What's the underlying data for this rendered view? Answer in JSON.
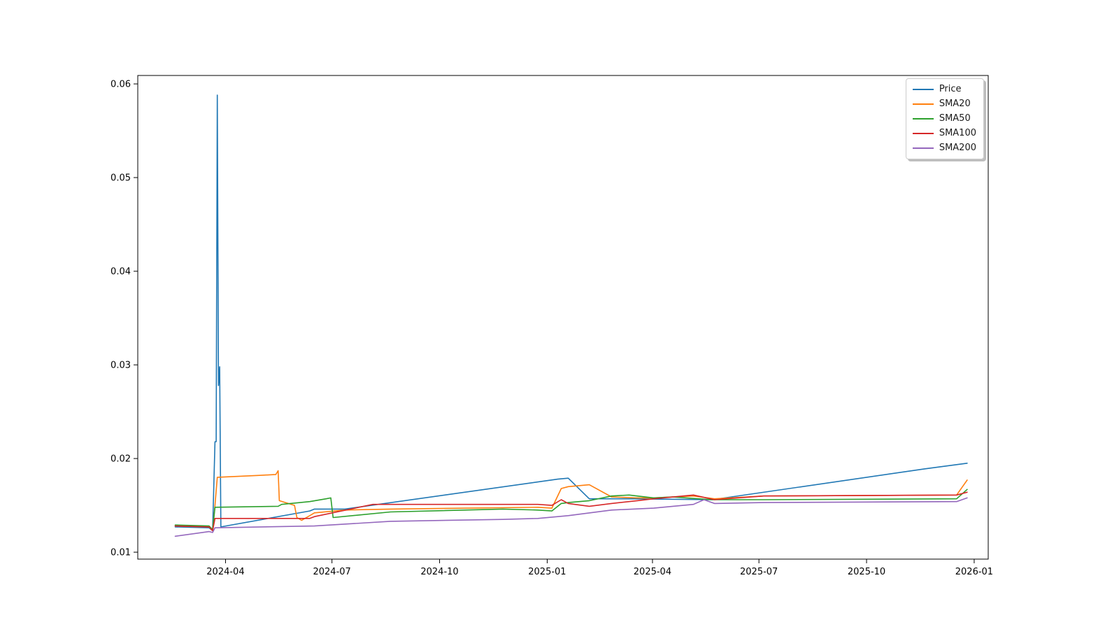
{
  "figure": {
    "background": "#ffffff"
  },
  "chart_data": {
    "type": "line",
    "title": "",
    "xlabel": "",
    "ylabel": "",
    "x_type": "date",
    "grid": false,
    "xlim": [
      "2024-01-17",
      "2026-01-13"
    ],
    "ylim": [
      0.00926,
      0.0609
    ],
    "x_ticks": [
      {
        "date": "2024-04-01",
        "label": "2024-04"
      },
      {
        "date": "2024-07-01",
        "label": "2024-07"
      },
      {
        "date": "2024-10-01",
        "label": "2024-10"
      },
      {
        "date": "2025-01-01",
        "label": "2025-01"
      },
      {
        "date": "2025-04-01",
        "label": "2025-04"
      },
      {
        "date": "2025-07-01",
        "label": "2025-07"
      },
      {
        "date": "2025-10-01",
        "label": "2025-10"
      },
      {
        "date": "2026-01-01",
        "label": "2026-01"
      }
    ],
    "y_ticks": [
      {
        "value": 0.01,
        "label": "0.01"
      },
      {
        "value": 0.02,
        "label": "0.02"
      },
      {
        "value": 0.03,
        "label": "0.03"
      },
      {
        "value": 0.04,
        "label": "0.04"
      },
      {
        "value": 0.05,
        "label": "0.05"
      },
      {
        "value": 0.06,
        "label": "0.06"
      }
    ],
    "legend": {
      "position": "upper-right"
    },
    "series": [
      {
        "name": "Price",
        "color": "#1f77b4",
        "points": [
          [
            "2024-02-18",
            0.0127
          ],
          [
            "2024-03-18",
            0.0126
          ],
          [
            "2024-03-21",
            0.0123
          ],
          [
            "2024-03-23",
            0.0218
          ],
          [
            "2024-03-24",
            0.0218
          ],
          [
            "2024-03-25",
            0.0588
          ],
          [
            "2024-03-26",
            0.0278
          ],
          [
            "2024-03-27",
            0.0298
          ],
          [
            "2024-03-28",
            0.0127
          ],
          [
            "2024-06-12",
            0.0144
          ],
          [
            "2024-06-16",
            0.0146
          ],
          [
            "2024-07-12",
            0.0146
          ],
          [
            "2025-01-10",
            0.0178
          ],
          [
            "2025-01-19",
            0.0179
          ],
          [
            "2025-02-06",
            0.0157
          ],
          [
            "2025-03-10",
            0.0157
          ],
          [
            "2025-05-22",
            0.0156
          ],
          [
            "2025-11-20",
            0.0189
          ],
          [
            "2025-12-26",
            0.0195
          ]
        ]
      },
      {
        "name": "SMA20",
        "color": "#ff7f0e",
        "points": [
          [
            "2024-02-18",
            0.0128
          ],
          [
            "2024-03-18",
            0.0127
          ],
          [
            "2024-03-21",
            0.0123
          ],
          [
            "2024-03-23",
            0.015
          ],
          [
            "2024-03-25",
            0.018
          ],
          [
            "2024-04-30",
            0.0182
          ],
          [
            "2024-05-14",
            0.0183
          ],
          [
            "2024-05-16",
            0.0187
          ],
          [
            "2024-05-17",
            0.0155
          ],
          [
            "2024-05-30",
            0.015
          ],
          [
            "2024-06-01",
            0.0137
          ],
          [
            "2024-06-05",
            0.0134
          ],
          [
            "2024-06-12",
            0.0139
          ],
          [
            "2024-06-16",
            0.0142
          ],
          [
            "2024-07-12",
            0.0145
          ],
          [
            "2024-08-20",
            0.0146
          ],
          [
            "2024-12-24",
            0.0148
          ],
          [
            "2025-01-05",
            0.0147
          ],
          [
            "2025-01-13",
            0.0168
          ],
          [
            "2025-01-19",
            0.017
          ],
          [
            "2025-02-06",
            0.0172
          ],
          [
            "2025-02-25",
            0.0159
          ],
          [
            "2025-03-18",
            0.0158
          ],
          [
            "2025-04-02",
            0.0158
          ],
          [
            "2025-05-06",
            0.016
          ],
          [
            "2025-05-24",
            0.0157
          ],
          [
            "2025-07-05",
            0.016
          ],
          [
            "2025-12-17",
            0.0161
          ],
          [
            "2025-12-26",
            0.0177
          ]
        ]
      },
      {
        "name": "SMA50",
        "color": "#2ca02c",
        "points": [
          [
            "2024-02-18",
            0.0129
          ],
          [
            "2024-03-18",
            0.0128
          ],
          [
            "2024-03-21",
            0.0124
          ],
          [
            "2024-03-23",
            0.0148
          ],
          [
            "2024-05-16",
            0.0149
          ],
          [
            "2024-05-19",
            0.0151
          ],
          [
            "2024-06-12",
            0.0154
          ],
          [
            "2024-06-26",
            0.0157
          ],
          [
            "2024-06-30",
            0.0158
          ],
          [
            "2024-07-02",
            0.0137
          ],
          [
            "2024-08-20",
            0.0143
          ],
          [
            "2024-11-24",
            0.0146
          ],
          [
            "2024-12-24",
            0.0145
          ],
          [
            "2025-01-05",
            0.0144
          ],
          [
            "2025-01-13",
            0.0152
          ],
          [
            "2025-01-19",
            0.0153
          ],
          [
            "2025-02-06",
            0.0155
          ],
          [
            "2025-02-25",
            0.016
          ],
          [
            "2025-03-12",
            0.0161
          ],
          [
            "2025-03-19",
            0.016
          ],
          [
            "2025-04-02",
            0.0158
          ],
          [
            "2025-04-18",
            0.0159
          ],
          [
            "2025-05-22",
            0.0156
          ],
          [
            "2025-07-05",
            0.0156
          ],
          [
            "2025-12-17",
            0.0157
          ],
          [
            "2025-12-26",
            0.0167
          ]
        ]
      },
      {
        "name": "SMA100",
        "color": "#d62728",
        "points": [
          [
            "2024-02-18",
            0.0128
          ],
          [
            "2024-03-18",
            0.0127
          ],
          [
            "2024-03-21",
            0.0123
          ],
          [
            "2024-03-23",
            0.0136
          ],
          [
            "2024-06-12",
            0.0136
          ],
          [
            "2024-06-16",
            0.0138
          ],
          [
            "2024-08-05",
            0.0151
          ],
          [
            "2024-12-24",
            0.0151
          ],
          [
            "2025-01-05",
            0.015
          ],
          [
            "2025-01-13",
            0.0156
          ],
          [
            "2025-01-19",
            0.0152
          ],
          [
            "2025-02-06",
            0.0149
          ],
          [
            "2025-02-25",
            0.0152
          ],
          [
            "2025-03-19",
            0.0155
          ],
          [
            "2025-04-02",
            0.0157
          ],
          [
            "2025-05-06",
            0.0161
          ],
          [
            "2025-05-24",
            0.0156
          ],
          [
            "2025-07-05",
            0.016
          ],
          [
            "2025-12-17",
            0.0161
          ],
          [
            "2025-12-26",
            0.0164
          ]
        ]
      },
      {
        "name": "SMA200",
        "color": "#9467bd",
        "points": [
          [
            "2024-02-18",
            0.0117
          ],
          [
            "2024-03-18",
            0.0122
          ],
          [
            "2024-03-21",
            0.0121
          ],
          [
            "2024-03-23",
            0.0126
          ],
          [
            "2024-06-16",
            0.0128
          ],
          [
            "2024-08-20",
            0.0133
          ],
          [
            "2024-11-24",
            0.0135
          ],
          [
            "2024-12-24",
            0.0136
          ],
          [
            "2025-01-19",
            0.0139
          ],
          [
            "2025-02-25",
            0.0145
          ],
          [
            "2025-04-02",
            0.0147
          ],
          [
            "2025-05-06",
            0.0151
          ],
          [
            "2025-05-15",
            0.0156
          ],
          [
            "2025-05-24",
            0.0152
          ],
          [
            "2025-07-05",
            0.0153
          ],
          [
            "2025-12-17",
            0.0154
          ],
          [
            "2025-12-26",
            0.0158
          ]
        ]
      }
    ]
  }
}
